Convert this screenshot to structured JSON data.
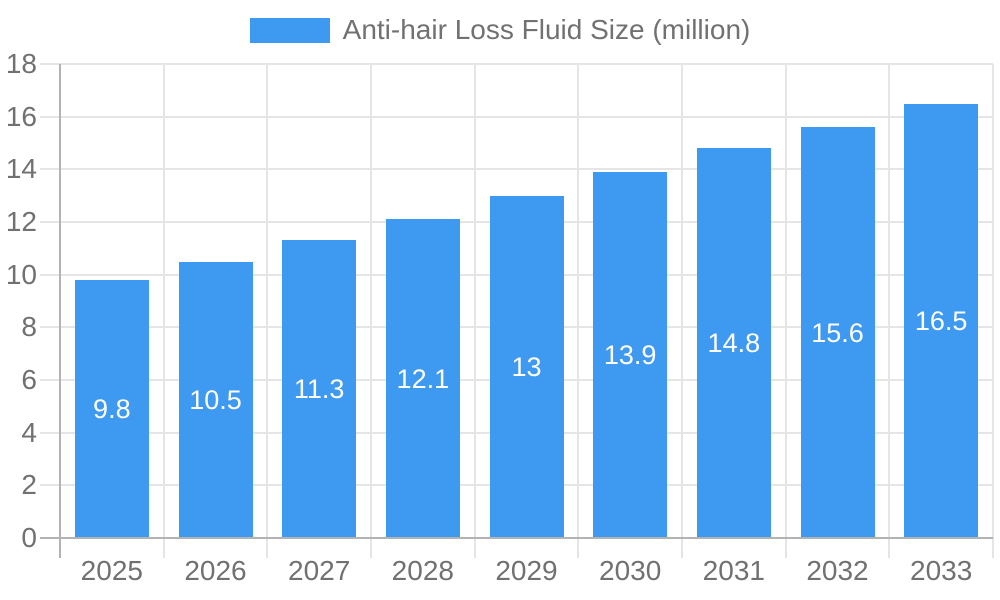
{
  "chart_data": {
    "type": "bar",
    "title": "Anti-hair Loss Fluid Size (million)",
    "categories": [
      "2025",
      "2026",
      "2027",
      "2028",
      "2029",
      "2030",
      "2031",
      "2032",
      "2033"
    ],
    "series": [
      {
        "name": "Anti-hair Loss Fluid Size (million)",
        "values": [
          9.8,
          10.5,
          11.3,
          12.1,
          13,
          13.9,
          14.8,
          15.6,
          16.5
        ],
        "value_labels": [
          "9.8",
          "10.5",
          "11.3",
          "12.1",
          "13",
          "13.9",
          "14.8",
          "15.6",
          "16.5"
        ],
        "color": "#3E99F0"
      }
    ],
    "xlabel": "",
    "ylabel": "",
    "ylim": [
      0,
      18
    ],
    "ytick_step": 2,
    "ytick_labels": [
      "0",
      "2",
      "4",
      "6",
      "8",
      "10",
      "12",
      "14",
      "16",
      "18"
    ],
    "grid": "both",
    "legend_position": "top-center",
    "value_label_position": "inside-center"
  },
  "legend": {
    "items": [
      {
        "label": "Anti-hair Loss Fluid Size (million)",
        "color": "#3E99F0"
      }
    ]
  },
  "colors": {
    "bar": "#3E99F0",
    "text": "#717171",
    "bar_label_text": "#ffffff",
    "grid": "#e5e5e5",
    "axis": "#b3b3b3",
    "background": "#ffffff"
  }
}
